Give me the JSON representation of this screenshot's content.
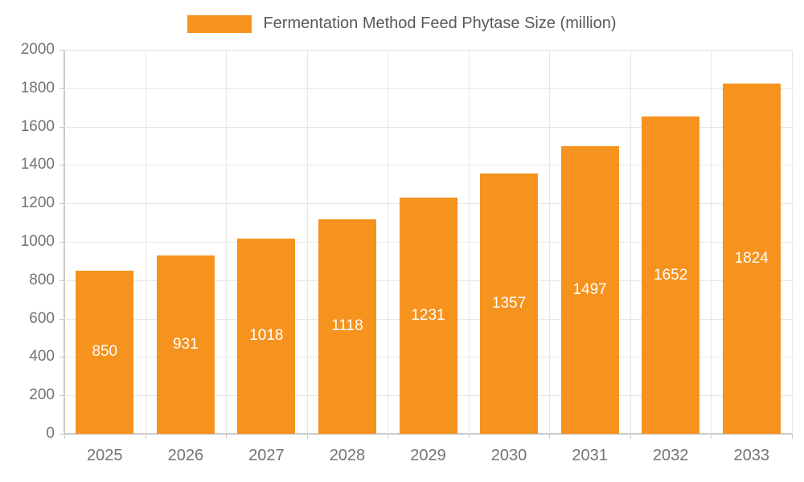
{
  "legend": {
    "label": "Fermentation Method Feed Phytase Size (million)"
  },
  "chart_data": {
    "type": "bar",
    "title": "Fermentation Method Feed Phytase Size (million)",
    "xlabel": "",
    "ylabel": "",
    "categories": [
      "2025",
      "2026",
      "2027",
      "2028",
      "2029",
      "2030",
      "2031",
      "2032",
      "2033"
    ],
    "series": [
      {
        "name": "Fermentation Method Feed Phytase Size (million)",
        "values": [
          850,
          931,
          1018,
          1118,
          1231,
          1357,
          1497,
          1652,
          1824
        ]
      }
    ],
    "ylim": [
      0,
      2000
    ],
    "ytick_step": 200,
    "ytick_labels": [
      "0",
      "200",
      "400",
      "600",
      "800",
      "1000",
      "1200",
      "1400",
      "1600",
      "1800",
      "2000"
    ],
    "grid": true,
    "legend_position": "top",
    "colors": {
      "bar": "#F6921E",
      "bar_label": "#ffffff",
      "axis_text": "#737373",
      "gridline": "#e6e6e6",
      "axis_line": "#c9c9c9",
      "legend_text": "#595959"
    }
  }
}
